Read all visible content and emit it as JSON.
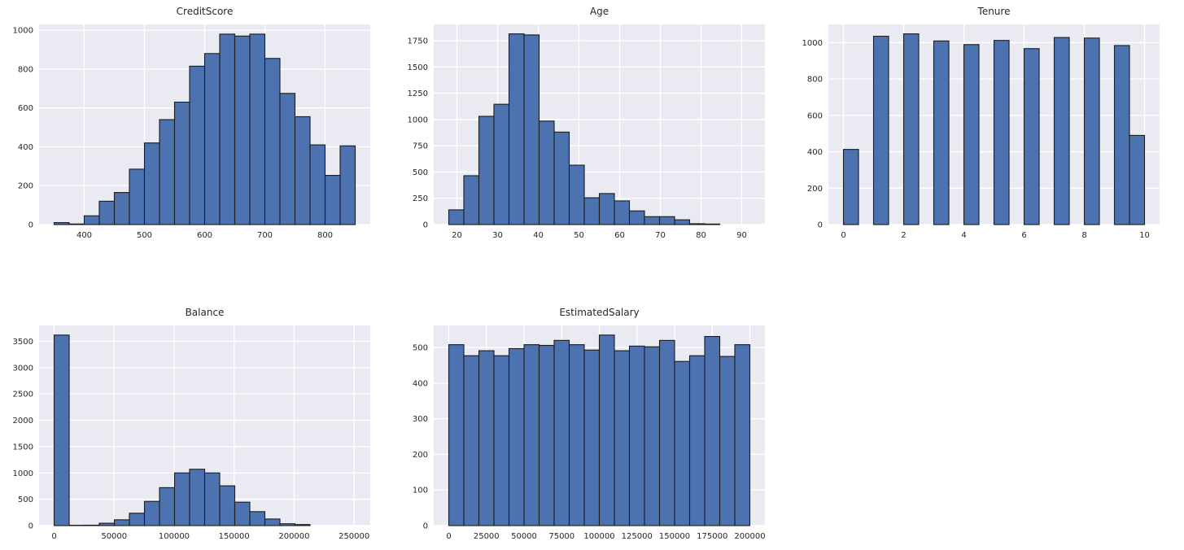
{
  "figure": {
    "background": "#ffffff",
    "axes_background": "#eaeaf2",
    "grid_color": "#ffffff",
    "bar_fill": "#4c72b0",
    "bar_edge": "#1c1c1c",
    "text_color": "#262626"
  },
  "chart_data": [
    {
      "type": "bar",
      "subtype": "histogram",
      "title": "CreditScore",
      "xlabel": "",
      "ylabel": "",
      "grid": true,
      "legend": false,
      "bin_start": 350,
      "bin_width": 25,
      "values": [
        10,
        3,
        45,
        120,
        165,
        285,
        420,
        540,
        630,
        815,
        880,
        980,
        970,
        980,
        855,
        675,
        555,
        410,
        253,
        405
      ],
      "xlim": [
        325,
        875
      ],
      "ylim": [
        0,
        1030
      ],
      "xticks": [
        400,
        500,
        600,
        700,
        800
      ],
      "yticks": [
        0,
        200,
        400,
        600,
        800,
        1000
      ]
    },
    {
      "type": "bar",
      "subtype": "histogram",
      "title": "Age",
      "xlabel": "",
      "ylabel": "",
      "grid": true,
      "legend": false,
      "bin_start": 18,
      "bin_width": 3.7,
      "values": [
        140,
        465,
        1030,
        1145,
        1815,
        1805,
        985,
        880,
        565,
        255,
        295,
        225,
        130,
        75,
        75,
        45,
        8,
        5,
        0,
        0
      ],
      "xlim": [
        14.3,
        95.7
      ],
      "ylim": [
        0,
        1905
      ],
      "xticks": [
        20,
        30,
        40,
        50,
        60,
        70,
        80,
        90
      ],
      "yticks": [
        0,
        250,
        500,
        750,
        1000,
        1250,
        1500,
        1750
      ]
    },
    {
      "type": "bar",
      "subtype": "histogram",
      "title": "Tenure",
      "xlabel": "",
      "ylabel": "",
      "grid": true,
      "legend": false,
      "bin_start": 0,
      "bin_width": 0.5,
      "values": [
        413,
        0,
        1035,
        0,
        1048,
        0,
        1009,
        0,
        989,
        0,
        1012,
        0,
        967,
        0,
        1028,
        0,
        1025,
        0,
        984,
        490
      ],
      "xlim": [
        -0.5,
        10.5
      ],
      "ylim": [
        0,
        1100
      ],
      "xticks": [
        0,
        2,
        4,
        6,
        8,
        10
      ],
      "yticks": [
        0,
        200,
        400,
        600,
        800,
        1000
      ]
    },
    {
      "type": "bar",
      "subtype": "histogram",
      "title": "Balance",
      "xlabel": "",
      "ylabel": "",
      "grid": true,
      "legend": false,
      "bin_start": 0,
      "bin_width": 12545,
      "values": [
        3617,
        2,
        8,
        45,
        110,
        235,
        460,
        720,
        1000,
        1070,
        1000,
        755,
        445,
        265,
        125,
        35,
        20,
        0,
        0,
        0
      ],
      "xlim": [
        -12545,
        263443
      ],
      "ylim": [
        0,
        3800
      ],
      "xticks": [
        0,
        50000,
        100000,
        150000,
        200000,
        250000
      ],
      "yticks": [
        0,
        500,
        1000,
        1500,
        2000,
        2500,
        3000,
        3500
      ]
    },
    {
      "type": "bar",
      "subtype": "histogram",
      "title": "EstimatedSalary",
      "xlabel": "",
      "ylabel": "",
      "grid": true,
      "legend": false,
      "bin_start": 0,
      "bin_width": 10000,
      "values": [
        508,
        477,
        491,
        477,
        497,
        508,
        506,
        520,
        508,
        493,
        535,
        491,
        504,
        502,
        520,
        461,
        477,
        531,
        475,
        508
      ],
      "xlim": [
        -10000,
        210000
      ],
      "ylim": [
        0,
        562
      ],
      "xticks": [
        0,
        25000,
        50000,
        75000,
        100000,
        125000,
        150000,
        175000,
        200000
      ],
      "yticks": [
        0,
        100,
        200,
        300,
        400,
        500
      ]
    }
  ]
}
